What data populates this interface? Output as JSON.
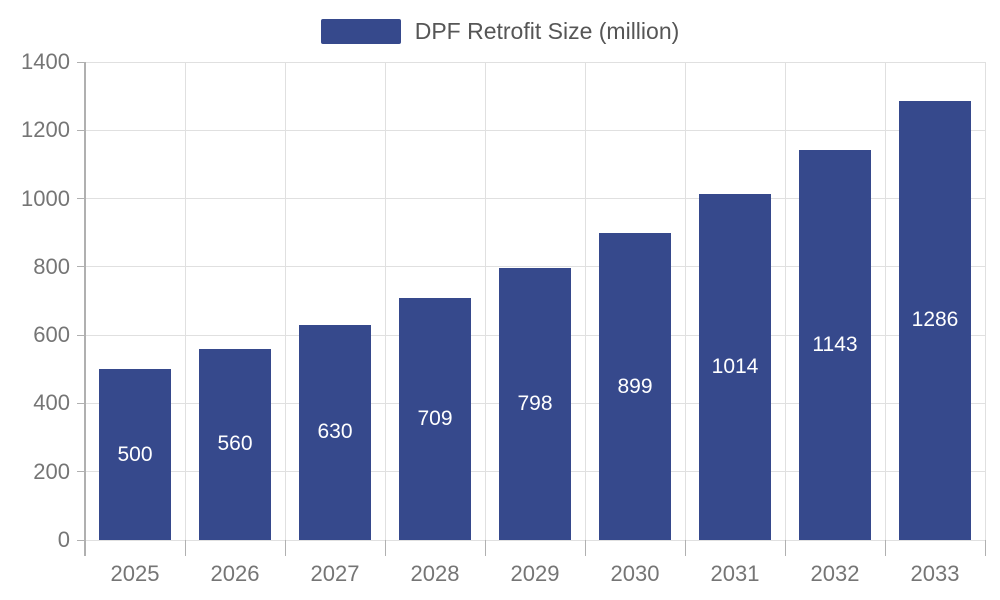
{
  "chart_data": {
    "type": "bar",
    "title": "",
    "legend": "DPF Retrofit Size (million)",
    "legend_position": "top-center",
    "categories": [
      "2025",
      "2026",
      "2027",
      "2028",
      "2029",
      "2030",
      "2031",
      "2032",
      "2033"
    ],
    "series": [
      {
        "name": "DPF Retrofit Size (million)",
        "values": [
          500,
          560,
          630,
          709,
          798,
          899,
          1014,
          1143,
          1286
        ]
      }
    ],
    "xlabel": "",
    "ylabel": "",
    "ylim": [
      0,
      1400
    ],
    "ytick_step": 200,
    "yticks": [
      0,
      200,
      400,
      600,
      800,
      1000,
      1200,
      1400
    ],
    "grid": "horizontal and vertical light gray gridlines",
    "value_labels": "white, centered inside each bar",
    "colors": {
      "bar": "#36498C",
      "grid": "#e0e0e0",
      "axis": "#b0b0b0",
      "tick_label": "#757575",
      "legend_text": "#565656",
      "value_label": "#ffffff",
      "background": "#ffffff"
    }
  }
}
